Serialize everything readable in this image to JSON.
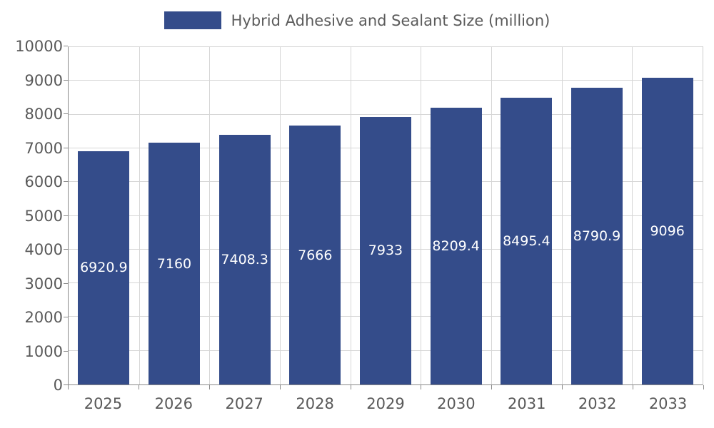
{
  "legend": {
    "label": "Hybrid Adhesive and Sealant Size (million)"
  },
  "chart_data": {
    "type": "bar",
    "title": "Hybrid Adhesive and Sealant Size (million)",
    "categories": [
      "2025",
      "2026",
      "2027",
      "2028",
      "2029",
      "2030",
      "2031",
      "2032",
      "2033"
    ],
    "values": [
      6920.9,
      7160,
      7408.3,
      7666,
      7933,
      8209.4,
      8495.4,
      8790.9,
      9096
    ],
    "value_labels": [
      "6920.9",
      "7160",
      "7408.3",
      "7666",
      "7933",
      "8209.4",
      "8495.4",
      "8790.9",
      "9096"
    ],
    "xlabel": "",
    "ylabel": "",
    "ylim": [
      0,
      10000
    ],
    "yticks": [
      0,
      1000,
      2000,
      3000,
      4000,
      5000,
      6000,
      7000,
      8000,
      9000,
      10000
    ],
    "grid": true,
    "legend_position": "top",
    "bar_color": "#344c8a",
    "value_label_color": "#ffffff",
    "axis_label_color": "#595959"
  }
}
